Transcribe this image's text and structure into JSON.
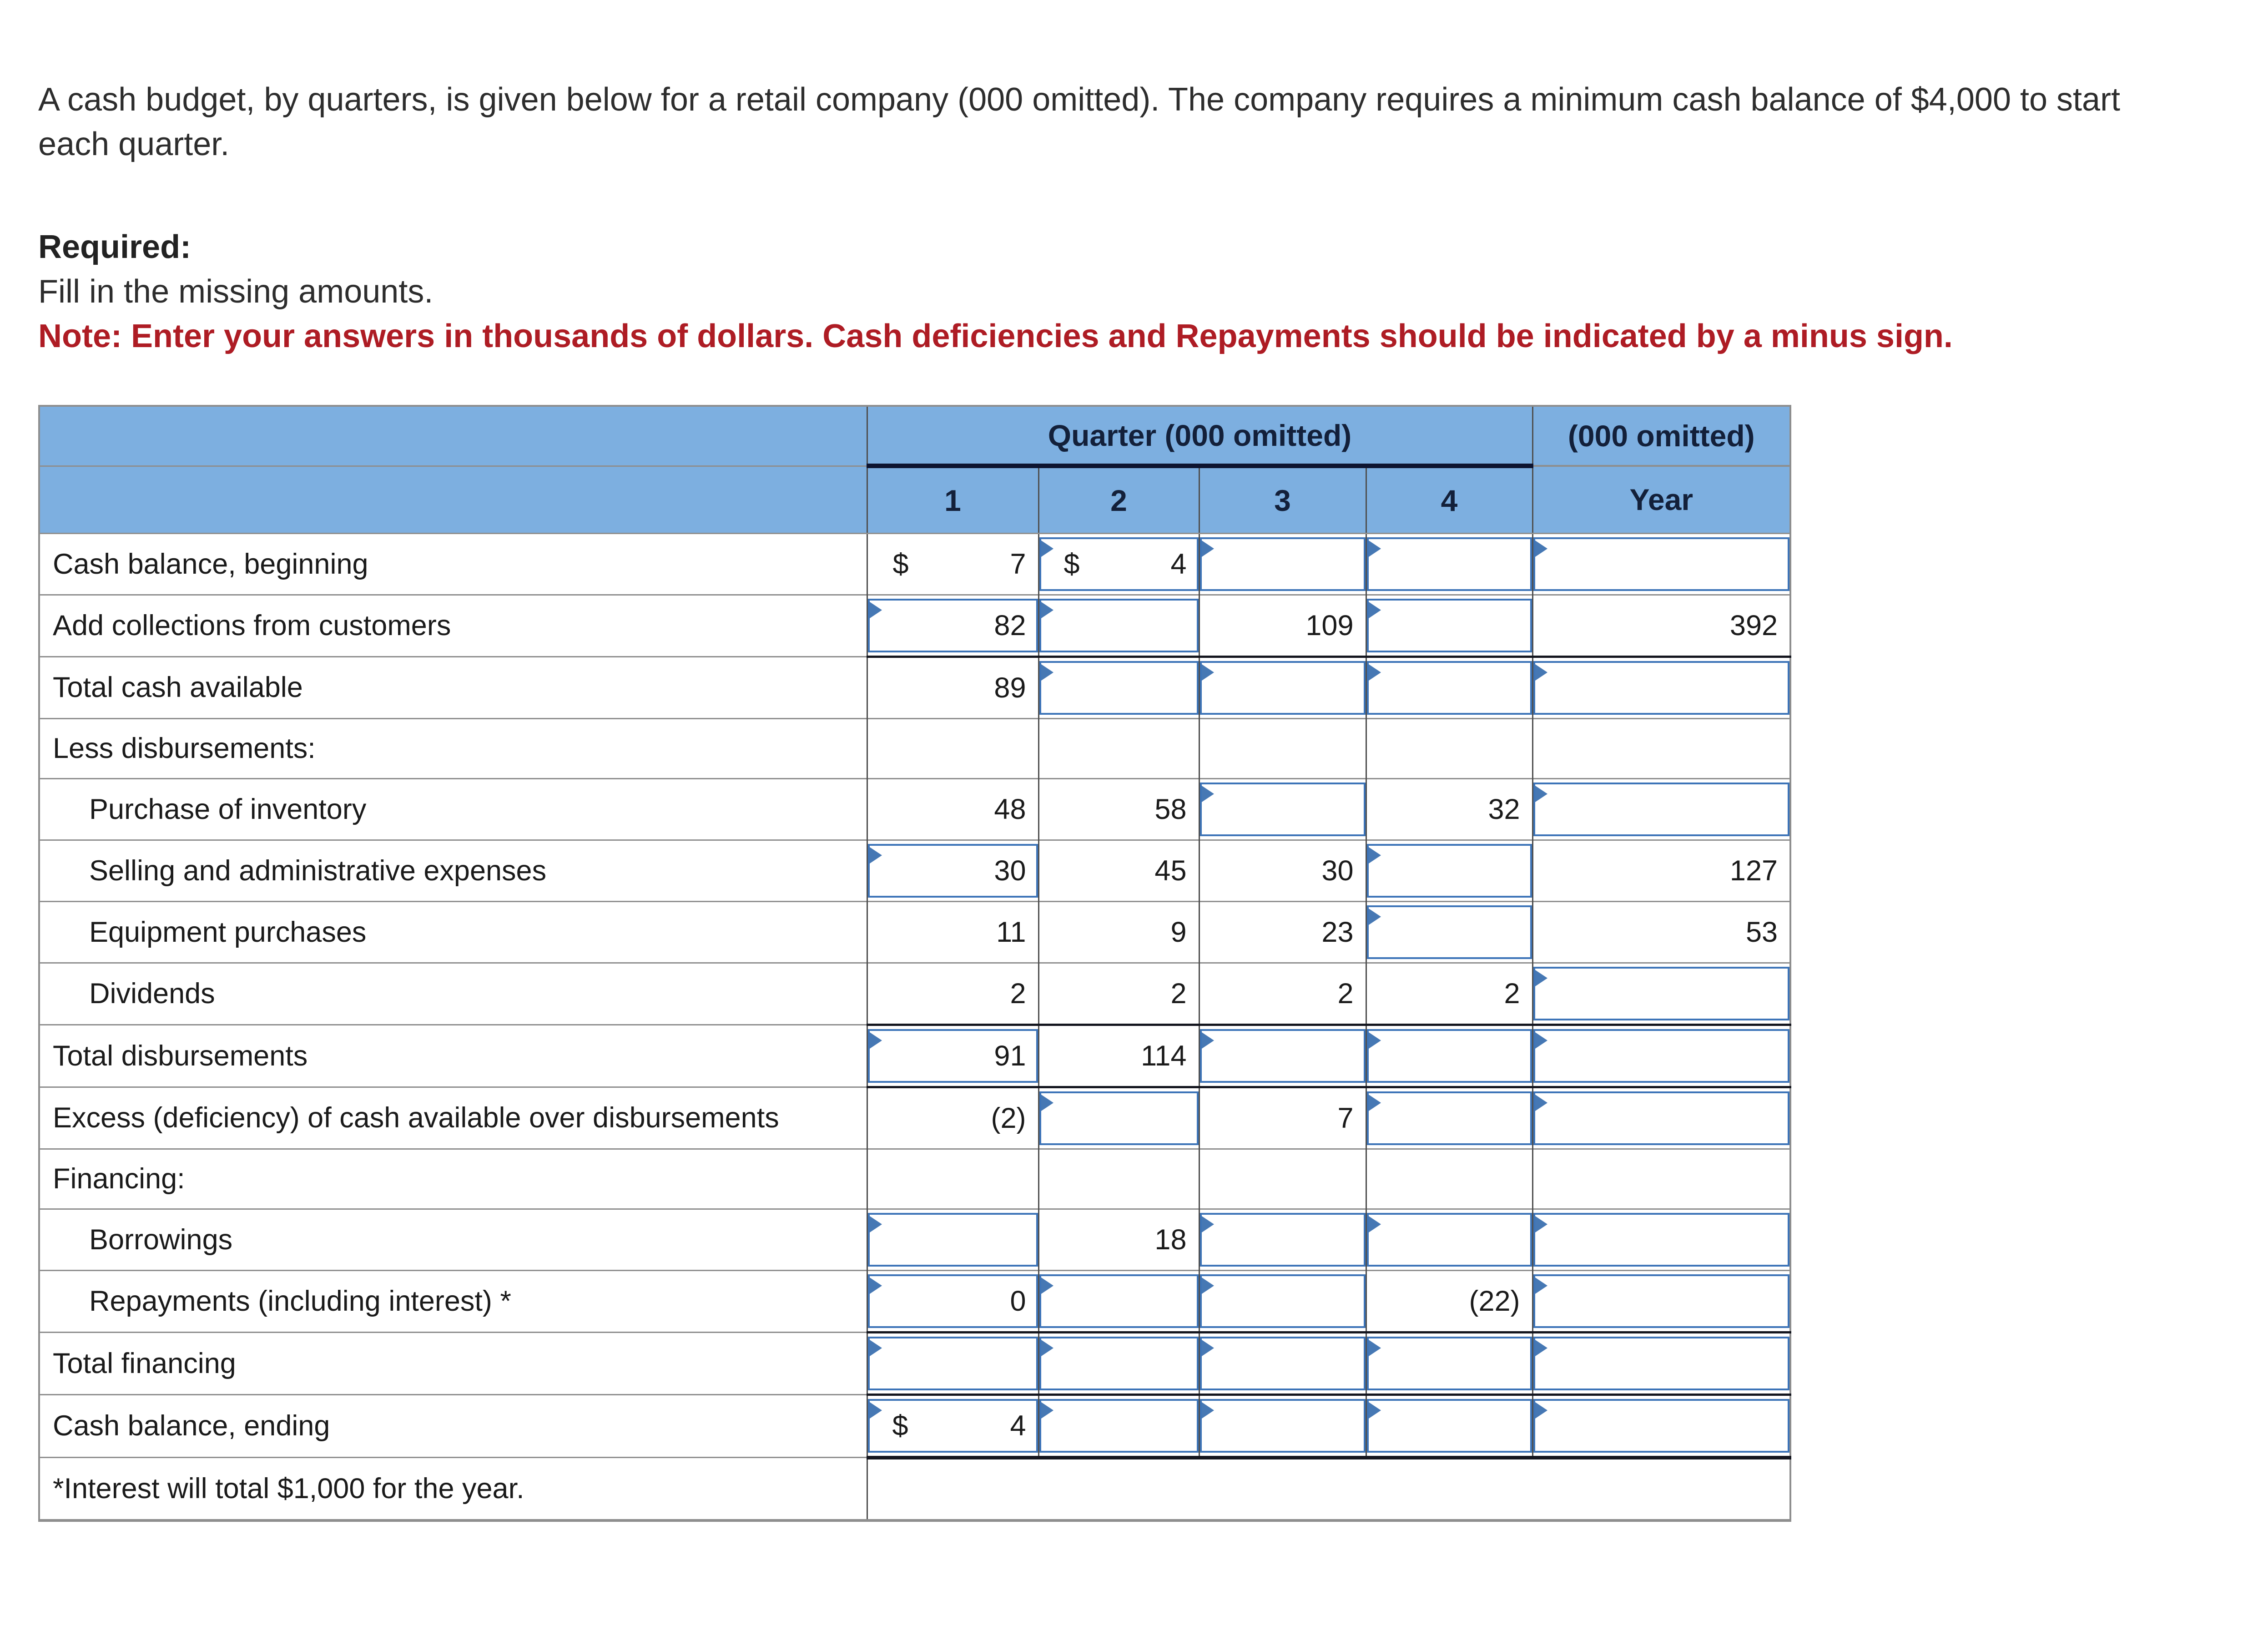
{
  "page": {
    "intro": "A cash budget, by quarters, is given below for a retail company (000 omitted). The company requires a minimum cash balance of $4,000 to start each quarter.",
    "required_label": "Required:",
    "required_text": "Fill in the missing amounts.",
    "note_text": "Note: Enter your answers in thousands of dollars. Cash deficiencies and Repayments should be indicated by a minus sign."
  },
  "colors": {
    "header_blue": "#7DAFE0",
    "input_border_blue": "#3D74B8",
    "marker_blue": "#4678B4",
    "note_red": "#AE1C24",
    "rule_navy": "#0D1430"
  },
  "table": {
    "header": {
      "quarter_group": "Quarter (000 omitted)",
      "year_group": "(000 omitted)",
      "columns": [
        "1",
        "2",
        "3",
        "4",
        "Year"
      ]
    },
    "rows": [
      {
        "label": "Cash balance, beginning",
        "indent": false,
        "rule_above": false,
        "ending": false,
        "cells": [
          {
            "kind": "given",
            "prefix": "$",
            "text": "7"
          },
          {
            "kind": "input",
            "prefix": "$",
            "text": "4"
          },
          {
            "kind": "input",
            "prefix": "",
            "text": ""
          },
          {
            "kind": "input",
            "prefix": "",
            "text": ""
          },
          {
            "kind": "input",
            "prefix": "",
            "text": ""
          }
        ]
      },
      {
        "label": "Add collections from customers",
        "indent": false,
        "rule_above": false,
        "ending": false,
        "cells": [
          {
            "kind": "input",
            "prefix": "",
            "text": "82"
          },
          {
            "kind": "input",
            "prefix": "",
            "text": ""
          },
          {
            "kind": "given",
            "prefix": "",
            "text": "109"
          },
          {
            "kind": "input",
            "prefix": "",
            "text": ""
          },
          {
            "kind": "given",
            "prefix": "",
            "text": "392"
          }
        ]
      },
      {
        "label": "Total cash available",
        "indent": false,
        "rule_above": true,
        "ending": false,
        "cells": [
          {
            "kind": "given",
            "prefix": "",
            "text": "89"
          },
          {
            "kind": "input",
            "prefix": "",
            "text": ""
          },
          {
            "kind": "input",
            "prefix": "",
            "text": ""
          },
          {
            "kind": "input",
            "prefix": "",
            "text": ""
          },
          {
            "kind": "input",
            "prefix": "",
            "text": ""
          }
        ]
      },
      {
        "label": "Less disbursements:",
        "indent": false,
        "rule_above": false,
        "ending": false,
        "cells": [
          {
            "kind": "blank",
            "prefix": "",
            "text": ""
          },
          {
            "kind": "blank",
            "prefix": "",
            "text": ""
          },
          {
            "kind": "blank",
            "prefix": "",
            "text": ""
          },
          {
            "kind": "blank",
            "prefix": "",
            "text": ""
          },
          {
            "kind": "blank",
            "prefix": "",
            "text": ""
          }
        ]
      },
      {
        "label": "Purchase of inventory",
        "indent": true,
        "rule_above": false,
        "ending": false,
        "cells": [
          {
            "kind": "given",
            "prefix": "",
            "text": "48"
          },
          {
            "kind": "given",
            "prefix": "",
            "text": "58"
          },
          {
            "kind": "input",
            "prefix": "",
            "text": ""
          },
          {
            "kind": "given",
            "prefix": "",
            "text": "32"
          },
          {
            "kind": "input",
            "prefix": "",
            "text": ""
          }
        ]
      },
      {
        "label": "Selling and administrative expenses",
        "indent": true,
        "rule_above": false,
        "ending": false,
        "cells": [
          {
            "kind": "input",
            "prefix": "",
            "text": "30"
          },
          {
            "kind": "given",
            "prefix": "",
            "text": "45"
          },
          {
            "kind": "given",
            "prefix": "",
            "text": "30"
          },
          {
            "kind": "input",
            "prefix": "",
            "text": ""
          },
          {
            "kind": "given",
            "prefix": "",
            "text": "127"
          }
        ]
      },
      {
        "label": "Equipment purchases",
        "indent": true,
        "rule_above": false,
        "ending": false,
        "cells": [
          {
            "kind": "given",
            "prefix": "",
            "text": "11"
          },
          {
            "kind": "given",
            "prefix": "",
            "text": "9"
          },
          {
            "kind": "given",
            "prefix": "",
            "text": "23"
          },
          {
            "kind": "input",
            "prefix": "",
            "text": ""
          },
          {
            "kind": "given",
            "prefix": "",
            "text": "53"
          }
        ]
      },
      {
        "label": "Dividends",
        "indent": true,
        "rule_above": false,
        "ending": false,
        "cells": [
          {
            "kind": "given",
            "prefix": "",
            "text": "2"
          },
          {
            "kind": "given",
            "prefix": "",
            "text": "2"
          },
          {
            "kind": "given",
            "prefix": "",
            "text": "2"
          },
          {
            "kind": "given",
            "prefix": "",
            "text": "2"
          },
          {
            "kind": "input",
            "prefix": "",
            "text": ""
          }
        ]
      },
      {
        "label": "Total disbursements",
        "indent": false,
        "rule_above": true,
        "ending": false,
        "cells": [
          {
            "kind": "input",
            "prefix": "",
            "text": "91"
          },
          {
            "kind": "given",
            "prefix": "",
            "text": "114"
          },
          {
            "kind": "input",
            "prefix": "",
            "text": ""
          },
          {
            "kind": "input",
            "prefix": "",
            "text": ""
          },
          {
            "kind": "input",
            "prefix": "",
            "text": ""
          }
        ]
      },
      {
        "label": "Excess (deficiency) of cash available over disbursements",
        "indent": false,
        "rule_above": true,
        "ending": false,
        "cells": [
          {
            "kind": "given",
            "prefix": "",
            "text": "(2)"
          },
          {
            "kind": "input",
            "prefix": "",
            "text": ""
          },
          {
            "kind": "given",
            "prefix": "",
            "text": "7"
          },
          {
            "kind": "input",
            "prefix": "",
            "text": ""
          },
          {
            "kind": "input",
            "prefix": "",
            "text": ""
          }
        ]
      },
      {
        "label": "Financing:",
        "indent": false,
        "rule_above": false,
        "ending": false,
        "cells": [
          {
            "kind": "blank",
            "prefix": "",
            "text": ""
          },
          {
            "kind": "blank",
            "prefix": "",
            "text": ""
          },
          {
            "kind": "blank",
            "prefix": "",
            "text": ""
          },
          {
            "kind": "blank",
            "prefix": "",
            "text": ""
          },
          {
            "kind": "blank",
            "prefix": "",
            "text": ""
          }
        ]
      },
      {
        "label": "Borrowings",
        "indent": true,
        "rule_above": false,
        "ending": false,
        "cells": [
          {
            "kind": "input",
            "prefix": "",
            "text": ""
          },
          {
            "kind": "given",
            "prefix": "",
            "text": "18"
          },
          {
            "kind": "input",
            "prefix": "",
            "text": ""
          },
          {
            "kind": "input",
            "prefix": "",
            "text": ""
          },
          {
            "kind": "input",
            "prefix": "",
            "text": ""
          }
        ]
      },
      {
        "label": "Repayments (including interest) *",
        "indent": true,
        "rule_above": false,
        "ending": false,
        "cells": [
          {
            "kind": "input",
            "prefix": "",
            "text": "0"
          },
          {
            "kind": "input",
            "prefix": "",
            "text": ""
          },
          {
            "kind": "input",
            "prefix": "",
            "text": ""
          },
          {
            "kind": "given",
            "prefix": "",
            "text": "(22)"
          },
          {
            "kind": "input",
            "prefix": "",
            "text": ""
          }
        ]
      },
      {
        "label": "Total financing",
        "indent": false,
        "rule_above": true,
        "ending": false,
        "cells": [
          {
            "kind": "input",
            "prefix": "",
            "text": ""
          },
          {
            "kind": "input",
            "prefix": "",
            "text": ""
          },
          {
            "kind": "input",
            "prefix": "",
            "text": ""
          },
          {
            "kind": "input",
            "prefix": "",
            "text": ""
          },
          {
            "kind": "input",
            "prefix": "",
            "text": ""
          }
        ]
      },
      {
        "label": "Cash balance, ending",
        "indent": false,
        "rule_above": true,
        "ending": true,
        "cells": [
          {
            "kind": "input",
            "prefix": "$",
            "text": "4"
          },
          {
            "kind": "input",
            "prefix": "",
            "text": ""
          },
          {
            "kind": "input",
            "prefix": "",
            "text": ""
          },
          {
            "kind": "input",
            "prefix": "",
            "text": ""
          },
          {
            "kind": "input",
            "prefix": "",
            "text": ""
          }
        ]
      }
    ],
    "footnote": "*Interest will total $1,000 for the year."
  }
}
